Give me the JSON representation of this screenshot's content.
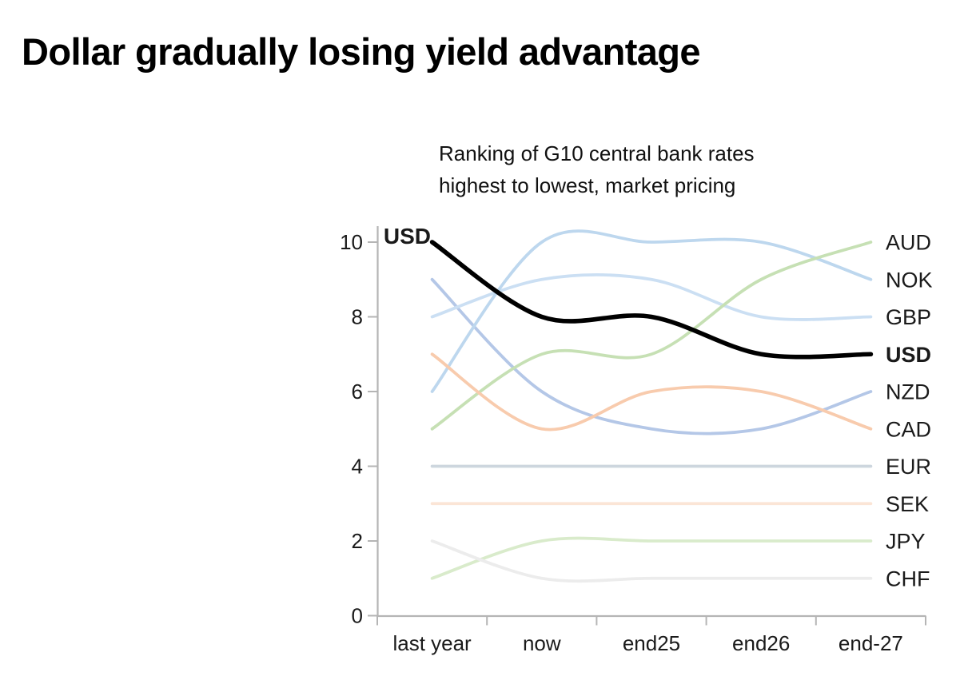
{
  "title": "Dollar gradually losing yield advantage",
  "chart_data": {
    "type": "line",
    "style": "smoothed bump chart (ranking over time)",
    "subtitle": [
      "Ranking of G10 central bank rates",
      "highest to lowest, market pricing"
    ],
    "categories": [
      "last year",
      "now",
      "end25",
      "end26",
      "end-27"
    ],
    "xlabel": "",
    "ylabel": "",
    "y_ticks": [
      0,
      2,
      4,
      6,
      8,
      10
    ],
    "ylim": [
      0,
      10.6
    ],
    "grid": false,
    "legend_position": "right-end-of-line labels, plus start label for USD at top left",
    "axis_color": "#b5b5b5",
    "text_color": "#1a1a1a",
    "start_label": "USD",
    "series": [
      {
        "name": "EUR",
        "values": [
          4,
          4,
          4,
          4,
          4
        ],
        "color": "#CDD6DE",
        "width": 3.8,
        "bold": false
      },
      {
        "name": "SEK",
        "values": [
          3,
          3,
          3,
          3,
          3
        ],
        "color": "#FBE5D6",
        "width": 3.8,
        "bold": false
      },
      {
        "name": "JPY",
        "values": [
          1,
          2,
          2,
          2,
          2
        ],
        "color": "#D9EBCB",
        "width": 3.8,
        "bold": false
      },
      {
        "name": "CHF",
        "values": [
          2,
          1,
          1,
          1,
          1
        ],
        "color": "#ECECEC",
        "width": 3.8,
        "bold": false
      },
      {
        "name": "NZD",
        "values": [
          9,
          6,
          5,
          5,
          6
        ],
        "color": "#B4C7E7",
        "width": 3.8,
        "bold": false
      },
      {
        "name": "GBP",
        "values": [
          8,
          9,
          9,
          8,
          8
        ],
        "color": "#CBDFF3",
        "width": 3.8,
        "bold": false
      },
      {
        "name": "NOK",
        "values": [
          6,
          10,
          10,
          10,
          9
        ],
        "color": "#BDD7EE",
        "width": 3.8,
        "bold": false
      },
      {
        "name": "AUD",
        "values": [
          5,
          7,
          7,
          9,
          10
        ],
        "color": "#C6E0B4",
        "width": 3.8,
        "bold": false
      },
      {
        "name": "CAD",
        "values": [
          7,
          5,
          6,
          6,
          5
        ],
        "color": "#F8CBAD",
        "width": 3.8,
        "bold": false
      },
      {
        "name": "USD",
        "values": [
          10,
          8,
          8,
          7,
          7
        ],
        "color": "#000000",
        "width": 5.6,
        "bold": true
      }
    ]
  }
}
